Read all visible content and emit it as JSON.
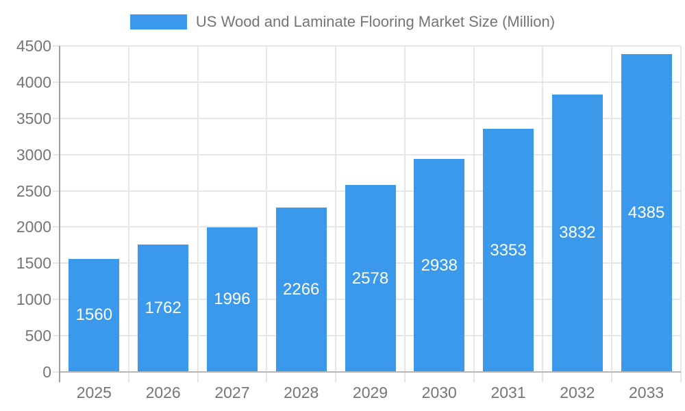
{
  "chart_data": {
    "type": "bar",
    "title": "US Wood and Laminate Flooring Market Size (Million)",
    "categories": [
      "2025",
      "2026",
      "2027",
      "2028",
      "2029",
      "2030",
      "2031",
      "2032",
      "2033"
    ],
    "values": [
      1560,
      1762,
      1996,
      2266,
      2578,
      2938,
      3353,
      3832,
      4385
    ],
    "xlabel": "",
    "ylabel": "",
    "ylim": [
      0,
      4500
    ],
    "yticks": [
      0,
      500,
      1000,
      1500,
      2000,
      2500,
      3000,
      3500,
      4000,
      4500
    ],
    "grid": true,
    "legend_position": "top",
    "data_labels": "inside-center",
    "colors": {
      "bar": "#3b99ec",
      "value_label": "#ffffff",
      "axis_text": "#757575",
      "gridline": "#e6e6e6",
      "y_axis_line": "#9e9e9e",
      "x_axis_line": "#b5b5b5"
    }
  }
}
